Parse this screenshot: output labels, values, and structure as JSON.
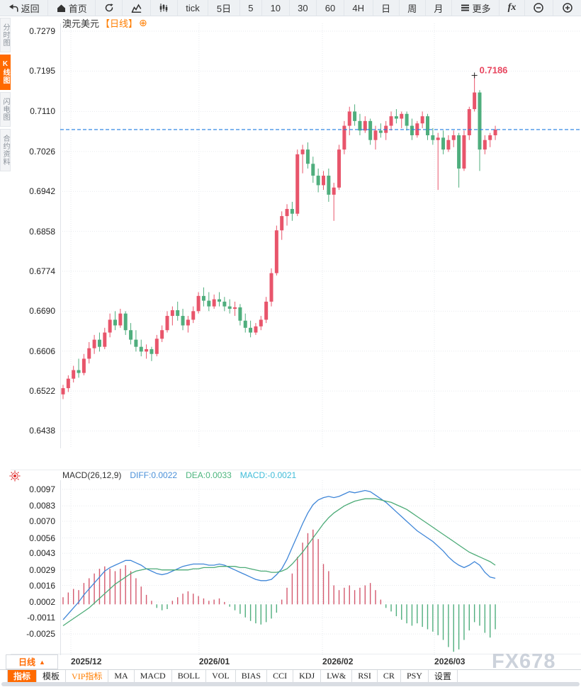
{
  "top_toolbar": {
    "buttons": [
      {
        "name": "back-button",
        "label": "返回",
        "icon": "back-arrow-icon"
      },
      {
        "name": "home-button",
        "label": "首页",
        "icon": "home-icon"
      },
      {
        "name": "refresh-button",
        "label": "",
        "icon": "refresh-icon"
      },
      {
        "name": "line-chart-button",
        "label": "",
        "icon": "line-chart-icon"
      },
      {
        "name": "candlestick-chart-button",
        "label": "",
        "icon": "candlestick-icon"
      },
      {
        "name": "tick-period-button",
        "label": "tick",
        "icon": ""
      },
      {
        "name": "period-5d-button",
        "label": "5日",
        "icon": ""
      },
      {
        "name": "period-5-button",
        "label": "5",
        "icon": ""
      },
      {
        "name": "period-10-button",
        "label": "10",
        "icon": ""
      },
      {
        "name": "period-30-button",
        "label": "30",
        "icon": ""
      },
      {
        "name": "period-60-button",
        "label": "60",
        "icon": ""
      },
      {
        "name": "period-4h-button",
        "label": "4H",
        "icon": ""
      },
      {
        "name": "period-day-button",
        "label": "日",
        "icon": ""
      },
      {
        "name": "period-week-button",
        "label": "周",
        "icon": ""
      },
      {
        "name": "period-month-button",
        "label": "月",
        "icon": ""
      },
      {
        "name": "more-button",
        "label": "更多",
        "icon": "menu-icon"
      },
      {
        "name": "formula-button",
        "label": "fx",
        "icon": "",
        "style": "formula"
      },
      {
        "name": "zoom-out-button",
        "label": "",
        "icon": "zoom-out-icon"
      },
      {
        "name": "zoom-in-button",
        "label": "",
        "icon": "zoom-in-icon"
      }
    ]
  },
  "sidebar": {
    "tabs": [
      {
        "name": "sidebar-tab-timeshare",
        "label": "分时图",
        "active": false
      },
      {
        "name": "sidebar-tab-kline",
        "label": "K线图",
        "active": true
      },
      {
        "name": "sidebar-tab-lightning",
        "label": "闪电图",
        "active": false
      },
      {
        "name": "sidebar-tab-contract-info",
        "label": "合约资料",
        "active": false
      }
    ]
  },
  "chart_header": {
    "symbol": "澳元美元",
    "period": "【日线】",
    "add_icon": "⊕"
  },
  "macd_header": {
    "name": "MACD(26,12,9)",
    "diff": "DIFF:0.0022",
    "dea": "DEA:0.0033",
    "macd": "MACD:-0.0021"
  },
  "bottom_bar": {
    "period_label": "日线",
    "period_arrow": "▲",
    "tabs": [
      {
        "name": "indicator-tab-indicator",
        "label": "指标",
        "state": "active"
      },
      {
        "name": "indicator-tab-template",
        "label": "模板",
        "state": ""
      },
      {
        "name": "indicator-tab-vip",
        "label": "VIP指标",
        "state": "vip"
      },
      {
        "name": "indicator-tab-ma",
        "label": "MA",
        "state": ""
      },
      {
        "name": "indicator-tab-macd",
        "label": "MACD",
        "state": ""
      },
      {
        "name": "indicator-tab-boll",
        "label": "BOLL",
        "state": ""
      },
      {
        "name": "indicator-tab-vol",
        "label": "VOL",
        "state": ""
      },
      {
        "name": "indicator-tab-bias",
        "label": "BIAS",
        "state": ""
      },
      {
        "name": "indicator-tab-cci",
        "label": "CCI",
        "state": ""
      },
      {
        "name": "indicator-tab-kdj",
        "label": "KDJ",
        "state": ""
      },
      {
        "name": "indicator-tab-lw",
        "label": "LW&",
        "state": ""
      },
      {
        "name": "indicator-tab-rsi",
        "label": "RSI",
        "state": ""
      },
      {
        "name": "indicator-tab-cr",
        "label": "CR",
        "state": ""
      },
      {
        "name": "indicator-tab-psy",
        "label": "PSY",
        "state": ""
      },
      {
        "name": "indicator-tab-settings",
        "label": "设置",
        "state": ""
      }
    ]
  },
  "watermark": "FX678",
  "colors": {
    "accent_orange": "#ff6a00",
    "candle_up": "#e8556b",
    "candle_down": "#4fae7d",
    "price_line_blue": "#1f7ce0",
    "diff_blue": "#3f86d8",
    "dea_green": "#4cab77",
    "macd_cyan": "#3fbcd8",
    "hist_up": "#d4596e",
    "hist_down": "#4fae7d",
    "grid": "#e7eaee",
    "axis_text": "#222",
    "marker_red": "#e8455e"
  },
  "chart_data": {
    "type": "candlestick+macd",
    "symbol": "澳元美元",
    "period": "日线",
    "price_axis_ticks": [
      0.7279,
      0.7195,
      0.711,
      0.7026,
      0.6942,
      0.6858,
      0.6774,
      0.669,
      0.6606,
      0.6522,
      0.6438
    ],
    "macd_axis_ticks": [
      0.0097,
      0.0083,
      0.007,
      0.0056,
      0.0043,
      0.0029,
      0.0016,
      0.0002,
      -0.0011,
      -0.0025
    ],
    "x_labels": [
      {
        "text": "2025/12",
        "candle_index": 1.5
      },
      {
        "text": "2026/01",
        "candle_index": 26.1
      },
      {
        "text": "2026/02",
        "candle_index": 49.8
      },
      {
        "text": "2026/03",
        "candle_index": 71.3
      }
    ],
    "last_price": 0.7072,
    "high_marker": {
      "index": 79,
      "price": 0.7186,
      "label": "0.7186"
    },
    "candles": [
      [
        0.6515,
        0.6535,
        0.6505,
        0.6528
      ],
      [
        0.6528,
        0.6555,
        0.652,
        0.6548
      ],
      [
        0.6548,
        0.6575,
        0.654,
        0.6566
      ],
      [
        0.6566,
        0.659,
        0.655,
        0.656
      ],
      [
        0.656,
        0.66,
        0.6555,
        0.659
      ],
      [
        0.659,
        0.6625,
        0.658,
        0.6612
      ],
      [
        0.6612,
        0.664,
        0.66,
        0.663
      ],
      [
        0.663,
        0.6645,
        0.6605,
        0.6615
      ],
      [
        0.6615,
        0.6655,
        0.661,
        0.6645
      ],
      [
        0.6645,
        0.6685,
        0.6635,
        0.6672
      ],
      [
        0.6672,
        0.669,
        0.665,
        0.666
      ],
      [
        0.666,
        0.6695,
        0.6655,
        0.6685
      ],
      [
        0.6685,
        0.669,
        0.664,
        0.665
      ],
      [
        0.665,
        0.6665,
        0.662,
        0.663
      ],
      [
        0.663,
        0.665,
        0.6605,
        0.6615
      ],
      [
        0.6615,
        0.663,
        0.6595,
        0.6605
      ],
      [
        0.6605,
        0.662,
        0.659,
        0.661
      ],
      [
        0.661,
        0.6615,
        0.6585,
        0.66
      ],
      [
        0.66,
        0.664,
        0.6595,
        0.6632
      ],
      [
        0.6632,
        0.666,
        0.6625,
        0.665
      ],
      [
        0.665,
        0.669,
        0.6645,
        0.668
      ],
      [
        0.668,
        0.67,
        0.666,
        0.6692
      ],
      [
        0.6692,
        0.671,
        0.667,
        0.668
      ],
      [
        0.668,
        0.6695,
        0.665,
        0.666
      ],
      [
        0.666,
        0.668,
        0.6645,
        0.6672
      ],
      [
        0.6672,
        0.67,
        0.6665,
        0.669
      ],
      [
        0.669,
        0.673,
        0.6685,
        0.6722
      ],
      [
        0.6722,
        0.674,
        0.67,
        0.6712
      ],
      [
        0.6712,
        0.673,
        0.669,
        0.67
      ],
      [
        0.67,
        0.6725,
        0.6695,
        0.6715
      ],
      [
        0.6715,
        0.673,
        0.67,
        0.671
      ],
      [
        0.671,
        0.672,
        0.669,
        0.67
      ],
      [
        0.67,
        0.6715,
        0.6685,
        0.6695
      ],
      [
        0.6695,
        0.671,
        0.668,
        0.6698
      ],
      [
        0.6698,
        0.6705,
        0.666,
        0.667
      ],
      [
        0.667,
        0.6685,
        0.6645,
        0.6655
      ],
      [
        0.6655,
        0.667,
        0.6635,
        0.6645
      ],
      [
        0.6645,
        0.6665,
        0.664,
        0.6658
      ],
      [
        0.6658,
        0.668,
        0.665,
        0.6672
      ],
      [
        0.6672,
        0.672,
        0.6665,
        0.671
      ],
      [
        0.671,
        0.678,
        0.67,
        0.677
      ],
      [
        0.677,
        0.687,
        0.6765,
        0.686
      ],
      [
        0.686,
        0.69,
        0.684,
        0.689
      ],
      [
        0.689,
        0.6915,
        0.687,
        0.6905
      ],
      [
        0.6905,
        0.692,
        0.688,
        0.6895
      ],
      [
        0.6895,
        0.703,
        0.689,
        0.702
      ],
      [
        0.702,
        0.704,
        0.698,
        0.703
      ],
      [
        0.703,
        0.7045,
        0.699,
        0.7
      ],
      [
        0.7,
        0.7015,
        0.696,
        0.6975
      ],
      [
        0.6975,
        0.699,
        0.694,
        0.6955
      ],
      [
        0.6955,
        0.6985,
        0.6945,
        0.6975
      ],
      [
        0.6975,
        0.699,
        0.692,
        0.6935
      ],
      [
        0.6935,
        0.696,
        0.688,
        0.695
      ],
      [
        0.695,
        0.704,
        0.6945,
        0.703
      ],
      [
        0.703,
        0.709,
        0.702,
        0.708
      ],
      [
        0.708,
        0.712,
        0.706,
        0.711
      ],
      [
        0.711,
        0.7125,
        0.708,
        0.709
      ],
      [
        0.709,
        0.7105,
        0.706,
        0.707
      ],
      [
        0.707,
        0.71,
        0.7065,
        0.709
      ],
      [
        0.709,
        0.7095,
        0.704,
        0.705
      ],
      [
        0.705,
        0.708,
        0.703,
        0.707
      ],
      [
        0.707,
        0.7085,
        0.7055,
        0.7065
      ],
      [
        0.7065,
        0.709,
        0.705,
        0.708
      ],
      [
        0.708,
        0.711,
        0.707,
        0.71
      ],
      [
        0.71,
        0.7115,
        0.7085,
        0.7095
      ],
      [
        0.7095,
        0.711,
        0.7075,
        0.7105
      ],
      [
        0.7105,
        0.711,
        0.707,
        0.708
      ],
      [
        0.708,
        0.7095,
        0.705,
        0.706
      ],
      [
        0.706,
        0.709,
        0.7055,
        0.7085
      ],
      [
        0.7085,
        0.711,
        0.7075,
        0.71
      ],
      [
        0.71,
        0.7105,
        0.705,
        0.706
      ],
      [
        0.706,
        0.7075,
        0.704,
        0.705
      ],
      [
        0.705,
        0.7065,
        0.6945,
        0.7055
      ],
      [
        0.7055,
        0.707,
        0.702,
        0.703
      ],
      [
        0.703,
        0.706,
        0.7025,
        0.705
      ],
      [
        0.705,
        0.707,
        0.7035,
        0.706
      ],
      [
        0.706,
        0.7065,
        0.695,
        0.699
      ],
      [
        0.699,
        0.707,
        0.6985,
        0.706
      ],
      [
        0.706,
        0.712,
        0.705,
        0.7115
      ],
      [
        0.7115,
        0.7186,
        0.711,
        0.715
      ],
      [
        0.715,
        0.7155,
        0.6985,
        0.703
      ],
      [
        0.703,
        0.706,
        0.702,
        0.705
      ],
      [
        0.705,
        0.7065,
        0.7035,
        0.706
      ],
      [
        0.706,
        0.708,
        0.705,
        0.7072
      ]
    ],
    "macd": {
      "params": "(26,12,9)",
      "latest": {
        "diff": 0.0022,
        "dea": 0.0033,
        "macd": -0.0021
      },
      "diff": [
        -0.0013,
        -0.0008,
        -0.0003,
        0.0002,
        0.0008,
        0.0013,
        0.0018,
        0.0023,
        0.0028,
        0.0031,
        0.0033,
        0.0035,
        0.0037,
        0.0037,
        0.0035,
        0.0033,
        0.003,
        0.0028,
        0.0026,
        0.0025,
        0.0026,
        0.0028,
        0.003,
        0.0032,
        0.0033,
        0.0034,
        0.0034,
        0.0034,
        0.0033,
        0.0033,
        0.0034,
        0.0033,
        0.0031,
        0.0029,
        0.0027,
        0.0025,
        0.0023,
        0.0021,
        0.002,
        0.002,
        0.0021,
        0.0025,
        0.003,
        0.0038,
        0.0048,
        0.0058,
        0.0068,
        0.0077,
        0.0084,
        0.0088,
        0.009,
        0.0091,
        0.009,
        0.0091,
        0.0093,
        0.0095,
        0.0094,
        0.0095,
        0.0096,
        0.0095,
        0.0092,
        0.0089,
        0.0086,
        0.0082,
        0.0078,
        0.0074,
        0.007,
        0.0066,
        0.0062,
        0.0059,
        0.0056,
        0.0053,
        0.0049,
        0.0045,
        0.004,
        0.0036,
        0.0033,
        0.0031,
        0.0033,
        0.0036,
        0.0033,
        0.0027,
        0.0023,
        0.0022
      ],
      "dea": [
        -0.0018,
        -0.0015,
        -0.0012,
        -0.0009,
        -0.0006,
        -0.0003,
        0.0001,
        0.0005,
        0.0009,
        0.0013,
        0.0017,
        0.002,
        0.0023,
        0.0026,
        0.0028,
        0.0029,
        0.003,
        0.003,
        0.003,
        0.0029,
        0.0029,
        0.0029,
        0.0029,
        0.0029,
        0.0029,
        0.003,
        0.003,
        0.0031,
        0.0031,
        0.0031,
        0.0032,
        0.0032,
        0.0032,
        0.0032,
        0.0031,
        0.0031,
        0.003,
        0.0029,
        0.0028,
        0.0028,
        0.0027,
        0.0027,
        0.0028,
        0.003,
        0.0034,
        0.0039,
        0.0044,
        0.005,
        0.0056,
        0.0062,
        0.0068,
        0.0073,
        0.0077,
        0.008,
        0.0083,
        0.0085,
        0.0087,
        0.0088,
        0.0089,
        0.0089,
        0.0089,
        0.0088,
        0.0087,
        0.0086,
        0.0084,
        0.0082,
        0.008,
        0.0077,
        0.0074,
        0.0071,
        0.0068,
        0.0065,
        0.0062,
        0.0059,
        0.0056,
        0.0053,
        0.005,
        0.0047,
        0.0044,
        0.0042,
        0.004,
        0.0038,
        0.0036,
        0.0033
      ],
      "hist": [
        0.0006,
        0.001,
        0.0013,
        0.0012,
        0.0018,
        0.0022,
        0.0026,
        0.003,
        0.0032,
        0.003,
        0.0028,
        0.003,
        0.0033,
        0.0028,
        0.0022,
        0.0015,
        0.0008,
        0.0003,
        -0.0003,
        -0.0005,
        -0.0004,
        0.0003,
        0.0006,
        0.0009,
        0.0011,
        0.0009,
        0.0007,
        0.0005,
        0.0003,
        0.0004,
        0.0005,
        0.0002,
        -0.0002,
        -0.0005,
        -0.0008,
        -0.0011,
        -0.0014,
        -0.0016,
        -0.0017,
        -0.0015,
        -0.0012,
        -0.0007,
        0.0004,
        0.0014,
        0.0026,
        0.004,
        0.0052,
        0.006,
        0.0063,
        0.0055,
        0.0034,
        0.0028,
        0.0016,
        0.0012,
        0.0014,
        0.0016,
        0.0012,
        0.0014,
        0.0016,
        0.0018,
        0.0012,
        0.0004,
        -0.0003,
        -0.0006,
        -0.001,
        -0.0013,
        -0.0016,
        -0.0018,
        -0.0016,
        -0.0019,
        -0.0021,
        -0.0023,
        -0.0026,
        -0.003,
        -0.0036,
        -0.004,
        -0.0038,
        -0.003,
        -0.0022,
        -0.0015,
        -0.0018,
        -0.0024,
        -0.0028,
        -0.0021
      ]
    }
  }
}
